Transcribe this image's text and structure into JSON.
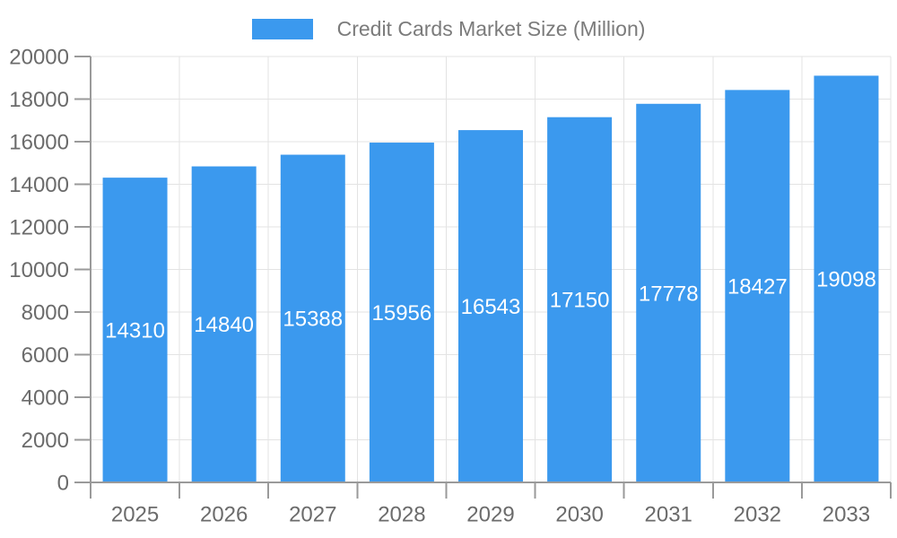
{
  "chart_data": {
    "type": "bar",
    "title": "Credit Cards Market Size (Million)",
    "series_name": "Credit Cards Market Size (Million)",
    "categories": [
      "2025",
      "2026",
      "2027",
      "2028",
      "2029",
      "2030",
      "2031",
      "2032",
      "2033"
    ],
    "values": [
      14310,
      14840,
      15388,
      15956,
      16543,
      17150,
      17778,
      18427,
      19098
    ],
    "xlabel": "",
    "ylabel": "",
    "ylim": [
      0,
      20000
    ],
    "ytick_step": 2000,
    "ytick_labels": [
      "0",
      "2000",
      "4000",
      "6000",
      "8000",
      "10000",
      "12000",
      "14000",
      "16000",
      "18000",
      "20000"
    ],
    "grid": true,
    "legend_position": "top-center",
    "value_label_position": "inside-middle",
    "bar_color": "#3b99ee",
    "bar_label_color": "#ffffff",
    "axis_color": "#9a9a9a",
    "grid_color": "#e3e3e3",
    "axis_text_color": "#6b6b6b",
    "legend_text_color": "#7b7b7b"
  }
}
